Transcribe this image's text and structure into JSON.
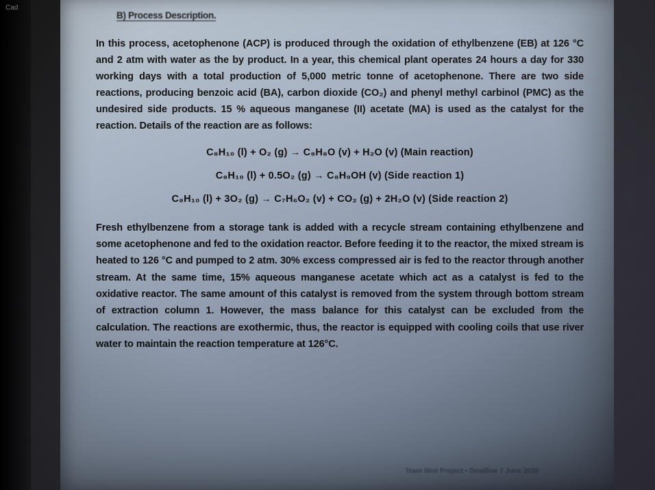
{
  "tab": "Cad",
  "header_cut": "B) Process Description.",
  "para1": "In this process, acetophenone (ACP) is produced through the oxidation of ethylbenzene (EB) at 126 °C and 2 atm with water as the by product. In a year, this chemical plant operates 24 hours a day for 330 working days with a total production of 5,000 metric tonne of acetophenone. There are two side reactions, producing benzoic acid (BA), carbon dioxide (CO₂) and phenyl methyl carbinol (PMC) as the undesired side products. 15 % aqueous manganese (II) acetate (MA) is used as the catalyst for the reaction. Details of the reaction are as follows:",
  "reactions": {
    "main": "C₈H₁₀ (l) + O₂ (g) → C₈H₈O (v) + H₂O (v) (Main reaction)",
    "side1": "C₈H₁₀ (l) + 0.5O₂ (g) → C₈H₉OH (v) (Side reaction 1)",
    "side2": "C₈H₁₀ (l) + 3O₂ (g) → C₇H₆O₂ (v) + CO₂ (g) + 2H₂O (v) (Side reaction 2)"
  },
  "para2": "Fresh ethylbenzene from a storage tank is added with a recycle stream containing ethylbenzene and some acetophenone and fed to the oxidation reactor. Before feeding it to the reactor, the mixed stream is heated to 126 °C and pumped to 2 atm. 30% excess compressed air is fed to the reactor through another stream. At the same time, 15% aqueous manganese acetate which act as a catalyst is fed to the oxidative reactor. The same amount of this catalyst is removed from the system through bottom stream of extraction column 1. However, the mass balance for this catalyst can be excluded from the calculation. The reactions are exothermic, thus, the reactor is equipped with cooling coils that use river water to maintain the reaction temperature at 126°C.",
  "footer": "Team Mini Project • Deadline 7 June 2020"
}
